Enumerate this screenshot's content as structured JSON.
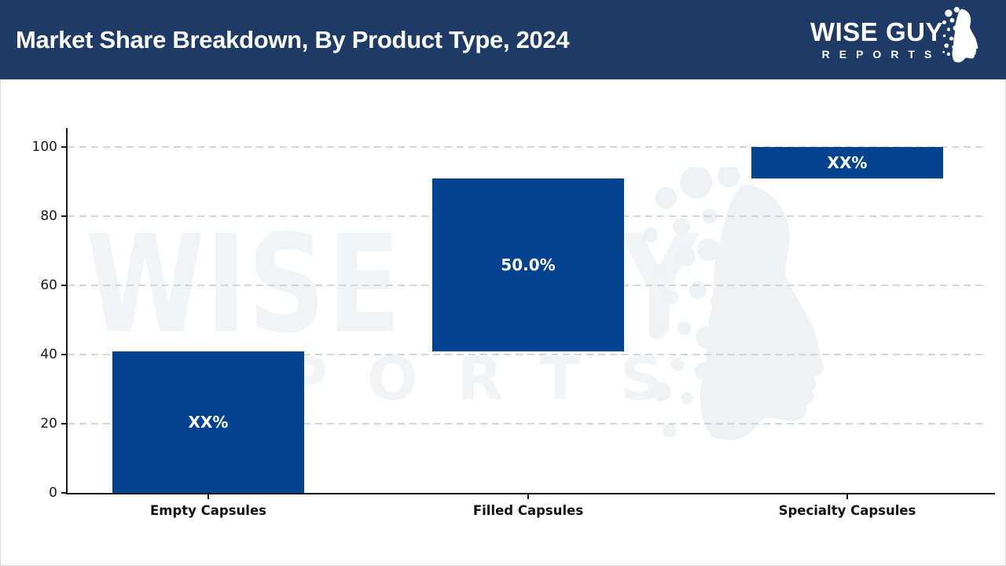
{
  "header": {
    "title": "Market Share Breakdown, By Product Type, 2024",
    "logo": {
      "line1": "WISE GUY",
      "line2": "REPORTS"
    }
  },
  "watermark": {
    "line1": "WISE GUY",
    "line2": "REPORTS"
  },
  "colors": {
    "header_bg": "#1e3a66",
    "bar": "#05428f",
    "bar_label": "#ffffff",
    "grid": "#d6d6d6",
    "axis": "#1a1a1a",
    "watermark": "#f2f3f6"
  },
  "chart_data": {
    "type": "bar",
    "subtype": "waterfall",
    "title": "Market Share Breakdown, By Product Type, 2024",
    "categories": [
      "Empty Capsules",
      "Filled Capsules",
      "Specialty Capsules"
    ],
    "series": [
      {
        "name": "Market share (%)",
        "segments": [
          {
            "category": "Empty Capsules",
            "base": 0,
            "top": 41,
            "label": "XX%"
          },
          {
            "category": "Filled Capsules",
            "base": 41,
            "top": 91,
            "label": "50.0%"
          },
          {
            "category": "Specialty Capsules",
            "base": 91,
            "top": 100,
            "label": "XX%"
          }
        ]
      }
    ],
    "xlabel": "",
    "ylabel": "",
    "ylim": [
      0,
      105
    ],
    "yticks": [
      0,
      20,
      40,
      60,
      80,
      100
    ],
    "grid": "horizontal-dashed",
    "legend": "none"
  }
}
